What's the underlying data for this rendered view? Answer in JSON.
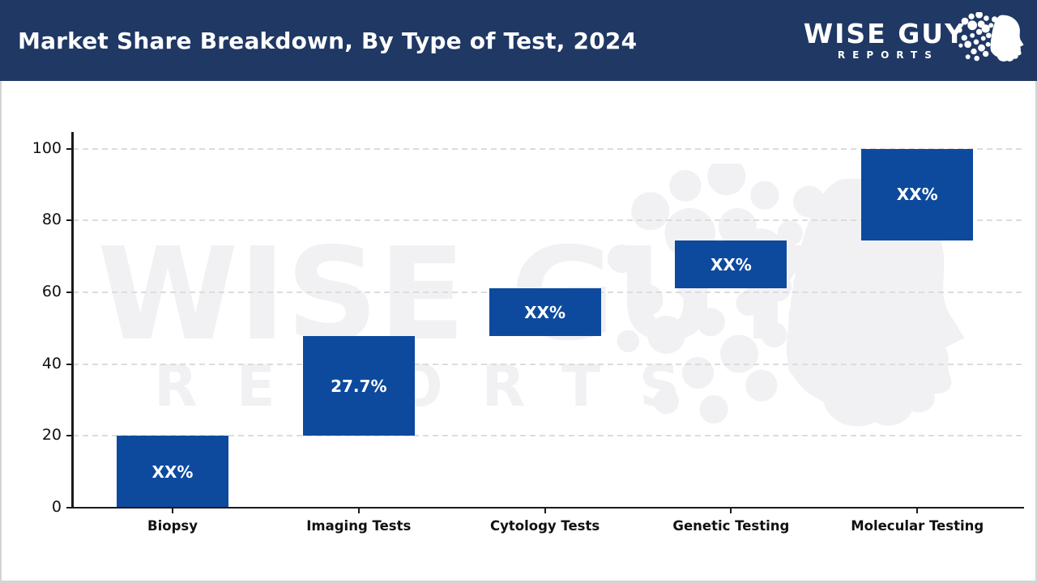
{
  "header": {
    "title": "Market Share Breakdown, By Type of Test, 2024",
    "brand": {
      "line1": "WISE GUY",
      "line2": "REPORTS"
    }
  },
  "watermark": {
    "line1": "WISE GUY",
    "line2": "REPORTS"
  },
  "colors": {
    "header_bg": "#1f3864",
    "bar": "#0d4a9e",
    "bar_label": "#ffffff",
    "gridline": "#dcdcdc",
    "axis": "#1a1a1a",
    "watermark": "#f1f1f4"
  },
  "chart_data": {
    "type": "bar",
    "subtype": "waterfall",
    "title": "Market Share Breakdown, By Type of Test, 2024",
    "categories": [
      "Biopsy",
      "Imaging Tests",
      "Cytology Tests",
      "Genetic Testing",
      "Molecular Testing"
    ],
    "segments": [
      {
        "category": "Biopsy",
        "start": 0,
        "end": 20,
        "height": 20,
        "label": "XX%"
      },
      {
        "category": "Imaging Tests",
        "start": 20,
        "end": 47.7,
        "height": 27.7,
        "label": "27.7%"
      },
      {
        "category": "Cytology Tests",
        "start": 47.7,
        "end": 61,
        "height": 13.3,
        "label": "XX%"
      },
      {
        "category": "Genetic Testing",
        "start": 61,
        "end": 74.5,
        "height": 13.5,
        "label": "XX%"
      },
      {
        "category": "Molecular Testing",
        "start": 74.5,
        "end": 100,
        "height": 25.5,
        "label": "XX%"
      }
    ],
    "yticks": [
      0,
      20,
      40,
      60,
      80,
      100
    ],
    "ylim": [
      0,
      104
    ],
    "xlabel": "",
    "ylabel": "",
    "grid": "horizontal-dashed",
    "legend": "none"
  }
}
